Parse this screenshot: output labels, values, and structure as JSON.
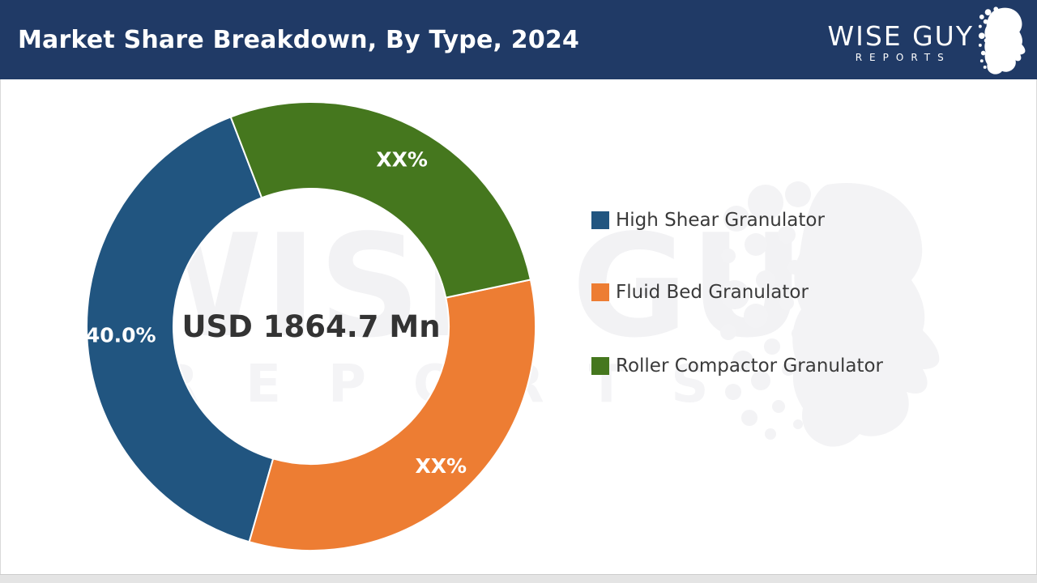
{
  "header": {
    "title": "Market Share Breakdown, By Type, 2024",
    "logo": {
      "line1": "WISE GUY",
      "line2": "REPORTS"
    }
  },
  "watermark": {
    "line1": "WISE GUY",
    "line2": "REPORTS"
  },
  "theme": {
    "header_bg": "#203A66",
    "center_text_color": "#333333",
    "legend_text_color": "#3A3A3A",
    "slice_label_color": "#FFFFFF",
    "watermark_color": "#F2F2F4"
  },
  "chart_data": {
    "type": "pie",
    "subtype": "donut",
    "title": "Market Share Breakdown, By Type, 2024",
    "center_label": "USD 1864.7 Mn",
    "legend_position": "right",
    "segments": [
      {
        "id": "high-shear-granulator",
        "label": "High Shear Granulator",
        "display_pct": "40.0%",
        "arc_pct": 40.0,
        "color": "#215580",
        "start_angle_deg": 111,
        "end_angle_deg": 254
      },
      {
        "id": "fluid-bed-granulator",
        "label": "Fluid Bed Granulator",
        "display_pct": "XX%",
        "arc_pct": 32.8,
        "color": "#ED7D33",
        "start_angle_deg": 254,
        "end_angle_deg": 372
      },
      {
        "id": "roller-compactor-granulator",
        "label": "Roller Compactor Granulator",
        "display_pct": "XX%",
        "arc_pct": 27.2,
        "color": "#45771E",
        "start_angle_deg": 12,
        "end_angle_deg": 111
      }
    ]
  }
}
